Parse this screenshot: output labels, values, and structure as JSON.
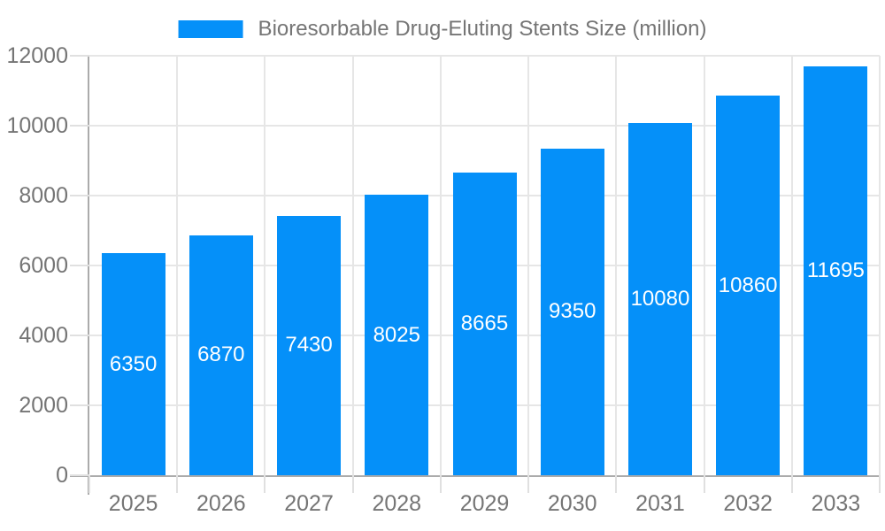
{
  "chart_data": {
    "type": "bar",
    "title": "Bioresorbable Drug-Eluting Stents Size (million)",
    "legend_position": "top",
    "categories": [
      "2025",
      "2026",
      "2027",
      "2028",
      "2029",
      "2030",
      "2031",
      "2032",
      "2033"
    ],
    "values": [
      6350,
      6870,
      7430,
      8025,
      8665,
      9350,
      10080,
      10860,
      11695
    ],
    "value_labels": [
      "6350",
      "6870",
      "7430",
      "8025",
      "8665",
      "9350",
      "10080",
      "10860",
      "11695"
    ],
    "xlabel": "",
    "ylabel": "",
    "ylim": [
      0,
      12000
    ],
    "yticks": [
      0,
      2000,
      4000,
      6000,
      8000,
      10000,
      12000
    ],
    "ytick_labels": [
      "0",
      "2000",
      "4000",
      "6000",
      "8000",
      "10000",
      "12000"
    ],
    "grid": true,
    "colors": {
      "bar_fill": "#0590F9",
      "bar_value_text": "#ffffff",
      "axis_text": "#757575",
      "axis_line": "#ababab",
      "gridline": "#e6e6e6",
      "tick_line": "#e0e0e0",
      "background": "#ffffff"
    }
  }
}
